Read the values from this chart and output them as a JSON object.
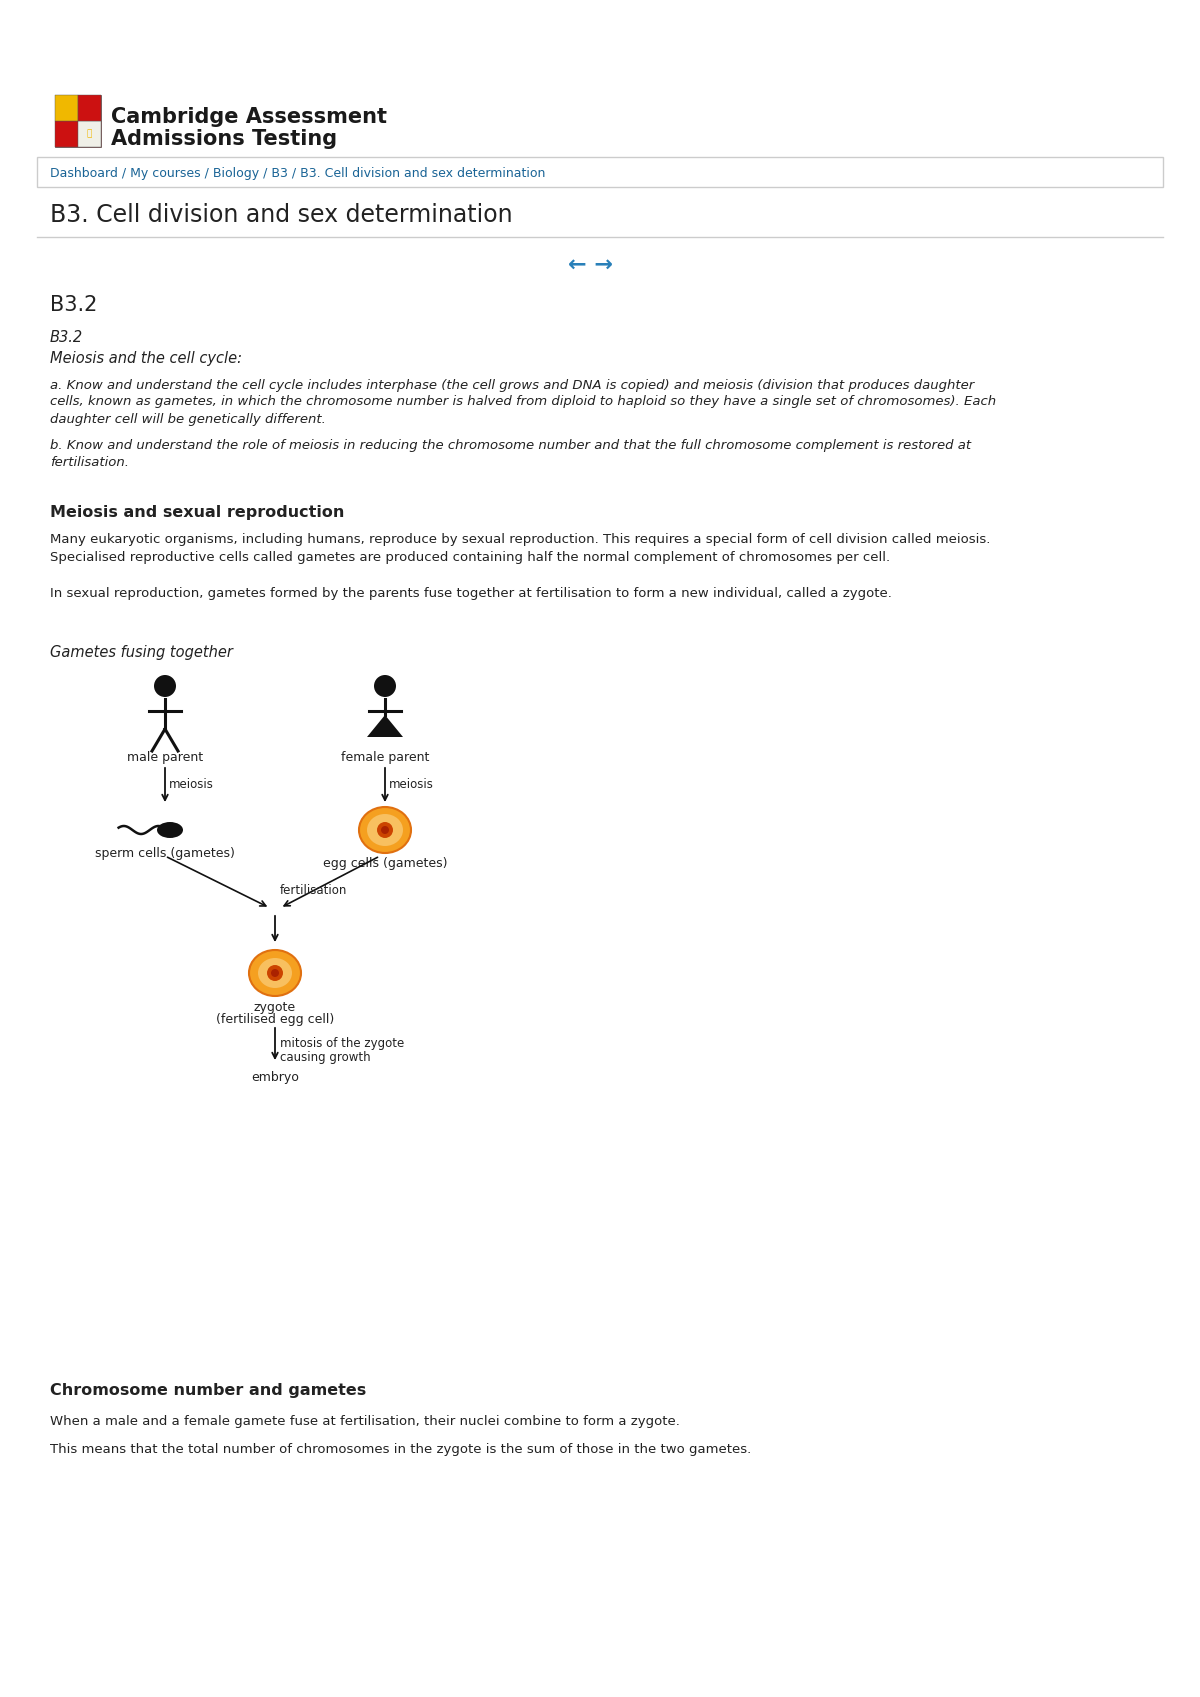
{
  "bg_color": "#ffffff",
  "header_logo_text1": "Cambridge Assessment",
  "header_logo_text2": "Admissions Testing",
  "breadcrumb": "Dashboard / My courses / Biology / B3 / B3. Cell division and sex determination",
  "page_title": "B3. Cell division and sex determination",
  "section_num": "B3.2",
  "section_label": "B3.2",
  "section_subtitle": "Meiosis and the cell cycle:",
  "para_a_lines": [
    "a. Know and understand the cell cycle includes interphase (the cell grows and DNA is copied) and meiosis (division that produces daughter",
    "cells, known as gametes, in which the chromosome number is halved from diploid to haploid so they have a single set of chromosomes). Each",
    "daughter cell will be genetically different."
  ],
  "para_b_lines": [
    "b. Know and understand the role of meiosis in reducing the chromosome number and that the full chromosome complement is restored at",
    "fertilisation."
  ],
  "heading_meiosis": "Meiosis and sexual reproduction",
  "para_meiosis1_lines": [
    "Many eukaryotic organisms, including humans, reproduce by sexual reproduction. This requires a special form of cell division called meiosis.",
    "Specialised reproductive cells called gametes are produced containing half the normal complement of chromosomes per cell."
  ],
  "para_meiosis2": "In sexual reproduction, gametes formed by the parents fuse together at fertilisation to form a new individual, called a zygote.",
  "diagram_caption": "Gametes fusing together",
  "heading_chrom": "Chromosome number and gametes",
  "para_chrom1": "When a male and a female gamete fuse at fertilisation, their nuclei combine to form a zygote.",
  "para_chrom2": "This means that the total number of chromosomes in the zygote is the sum of those in the two gametes.",
  "link_color": "#1a6496",
  "border_color": "#cccccc",
  "arrow_color": "#2980b9",
  "text_color": "#222222",
  "shield_red": "#cc1111",
  "shield_yellow": "#f0b800",
  "shield_white": "#ffffff"
}
